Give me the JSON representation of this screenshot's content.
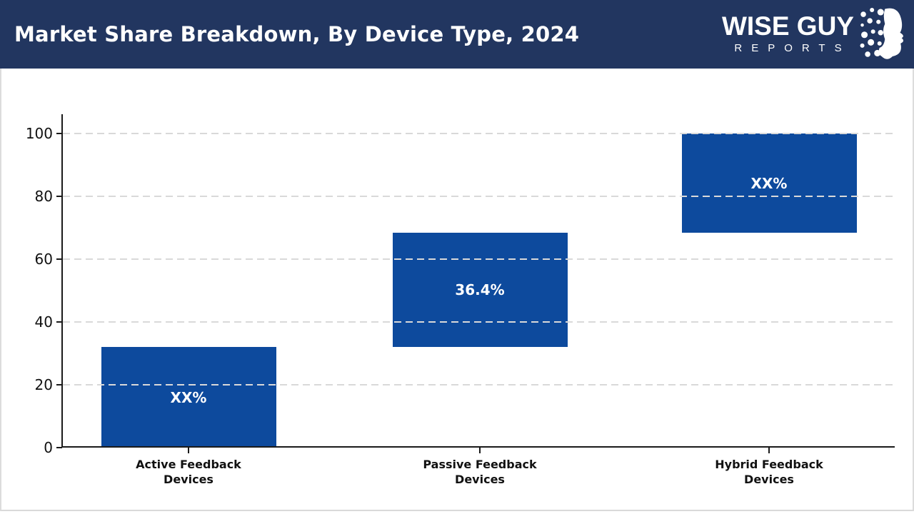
{
  "header": {
    "title": "Market Share Breakdown, By Device Type, 2024",
    "logo": {
      "name_top": "WISE GUY",
      "name_bottom": "REPORTS"
    }
  },
  "watermark": {
    "line1": "WISE GUY",
    "line2": "REPORTS"
  },
  "chart_data": {
    "type": "bar",
    "subtype": "floating-segment-waterfall",
    "title": "Market Share Breakdown, By Device Type, 2024",
    "categories": [
      {
        "name": "Active Feedback Devices",
        "lines": [
          "Active Feedback",
          "Devices"
        ]
      },
      {
        "name": "Passive Feedback Devices",
        "lines": [
          "Passive Feedback",
          "Devices"
        ]
      },
      {
        "name": "Hybrid Feedback Devices",
        "lines": [
          "Hybrid Feedback",
          "Devices"
        ]
      }
    ],
    "segments": [
      {
        "category": "Active Feedback Devices",
        "start": 0,
        "end": 32,
        "label": "XX%"
      },
      {
        "category": "Passive Feedback Devices",
        "start": 32,
        "end": 68.4,
        "label": "36.4%"
      },
      {
        "category": "Hybrid Feedback Devices",
        "start": 68.4,
        "end": 100,
        "label": "XX%"
      }
    ],
    "xlabel": "",
    "ylabel": "",
    "yticks": [
      0,
      20,
      40,
      60,
      80,
      100
    ],
    "ylim": [
      0,
      106
    ],
    "grid": {
      "axis": "y",
      "style": "dashed",
      "over_bars": true
    },
    "legend": null,
    "colors": {
      "bar": "#0d4a9d",
      "header_band": "#223660",
      "bar_label_text": "#ffffff",
      "axis": "#1a1a1a",
      "gridline": "#d9d9d9",
      "watermark": "#f1f1f4"
    }
  }
}
